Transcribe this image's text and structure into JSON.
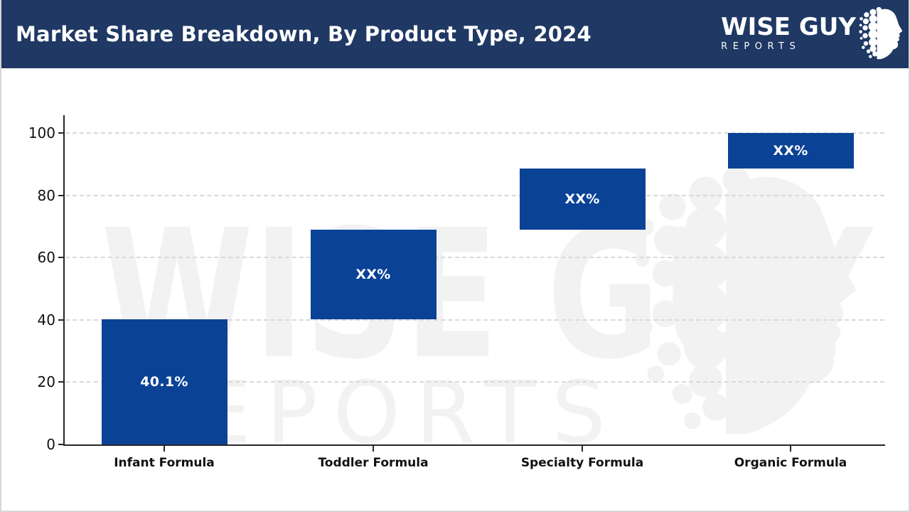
{
  "header": {
    "title": "Market Share Breakdown, By Product Type, 2024",
    "logo_line1": "WISE GUY",
    "logo_line2": "REPORTS"
  },
  "watermark": {
    "line1": "WISE GUY",
    "line2": "REPORTS"
  },
  "chart_data": {
    "type": "bar",
    "subtype": "waterfall",
    "title": "Market Share Breakdown, By Product Type, 2024",
    "categories": [
      "Infant Formula",
      "Toddler Formula",
      "Specialty Formula",
      "Organic Formula"
    ],
    "segments": [
      {
        "category": "Infant Formula",
        "start": 0,
        "end": 40.1,
        "label": "40.1%"
      },
      {
        "category": "Toddler Formula",
        "start": 40.1,
        "end": 69,
        "label": "XX%"
      },
      {
        "category": "Specialty Formula",
        "start": 69,
        "end": 88.5,
        "label": "XX%"
      },
      {
        "category": "Organic Formula",
        "start": 88.5,
        "end": 100,
        "label": "XX%"
      }
    ],
    "ylim": [
      0,
      100
    ],
    "yticks": [
      0,
      20,
      40,
      60,
      80,
      100
    ],
    "grid": "horizontal-dashed",
    "legend": "none",
    "colors": {
      "bar": "#0a4296",
      "bar_label": "#ffffff",
      "header_bg": "#1f3864",
      "axis": "#262626",
      "gridline": "#d9d9d9",
      "watermark": "#f2f2f2",
      "tick_text": "#111111"
    }
  }
}
